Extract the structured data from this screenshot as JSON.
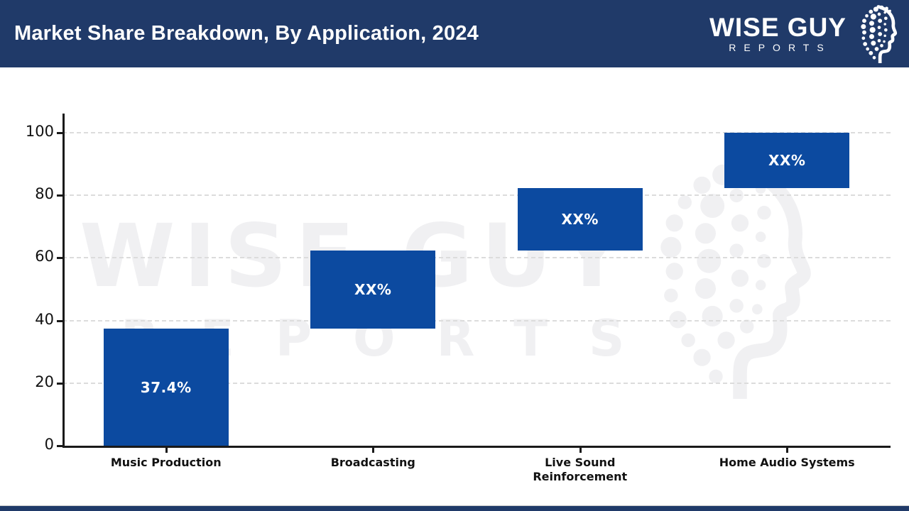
{
  "header": {
    "title": "Market Share Breakdown, By Application, 2024",
    "brand": {
      "line1": "WISE GUY",
      "line2": "REPORTS"
    }
  },
  "watermark": {
    "line1": "WISE GUY",
    "line2": "REPORTS"
  },
  "colors": {
    "background": "#ffffff",
    "header_bg": "#203a69",
    "footer_bg": "#203a69",
    "bar": "#0c4aa0",
    "bar_label": "#ffffff",
    "grid": "#dcdcdc",
    "axis": "#1a1a1a",
    "tick_label": "#111111",
    "watermark": "#f0f0f2"
  },
  "chart_data": {
    "type": "bar",
    "subtype": "floating-waterfall",
    "title": "Market Share Breakdown, By Application, 2024",
    "categories": [
      "Music Production",
      "Broadcasting",
      "Live Sound Reinforcement",
      "Home Audio Systems"
    ],
    "segments": [
      {
        "category": "Music Production",
        "start": 0,
        "end": 37.4,
        "value": 37.4,
        "label": "37.4%"
      },
      {
        "category": "Broadcasting",
        "start": 37.4,
        "end": 62.4,
        "value": 25.0,
        "label": "XX%"
      },
      {
        "category": "Live Sound Reinforcement",
        "start": 62.4,
        "end": 82.3,
        "value": 19.9,
        "label": "XX%"
      },
      {
        "category": "Home Audio Systems",
        "start": 82.3,
        "end": 100,
        "value": 17.7,
        "label": "XX%"
      }
    ],
    "xlabel": "",
    "ylabel": "",
    "ylim": [
      0,
      100
    ],
    "yticks": [
      0,
      20,
      40,
      60,
      80,
      100
    ],
    "grid": "horizontal-dashed",
    "legend": "none",
    "bar_color": "#0c4aa0"
  }
}
